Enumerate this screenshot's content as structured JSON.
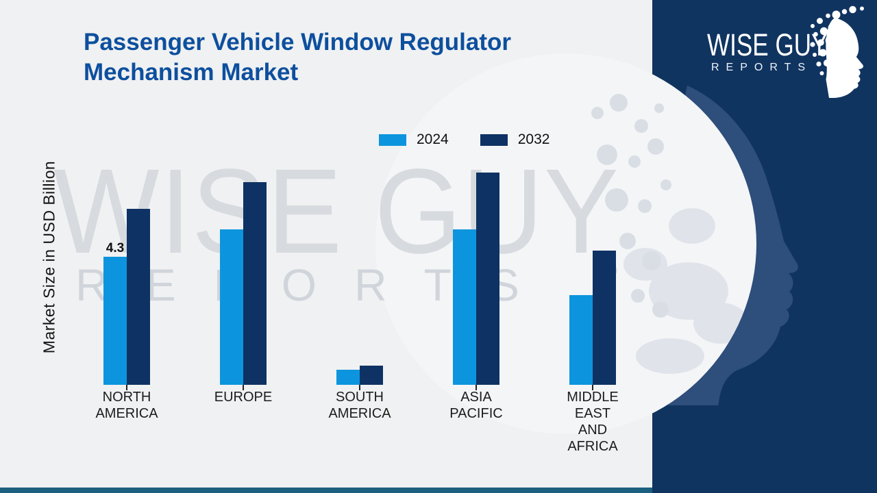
{
  "title": "Passenger Vehicle Window Regulator Mechanism Market",
  "y_axis_label": "Market Size in USD Billion",
  "watermark": {
    "line1": "WISE GUY",
    "line2": "REPORTS"
  },
  "logo": {
    "name": "WISE GUY",
    "sub": "REPORTS"
  },
  "legend": {
    "items": [
      {
        "label": "2024"
      },
      {
        "label": "2032"
      }
    ]
  },
  "colors": {
    "series_2024": "#0c95de",
    "series_2032": "#0e3263",
    "title_blue": "#0d4f9e",
    "corner_navy": "#103460",
    "face_blue": "#2e4e7b",
    "footer_teal": "#1c6080",
    "background": "#f0f1f2"
  },
  "chart_data": {
    "type": "bar",
    "title": "Passenger Vehicle Window Regulator Mechanism Market",
    "ylabel": "Market Size in USD Billion",
    "xlabel": "",
    "categories": [
      "NORTH AMERICA",
      "EUROPE",
      "SOUTH AMERICA",
      "ASIA PACIFIC",
      "MIDDLE EAST AND AFRICA"
    ],
    "category_lines": [
      [
        "NORTH",
        "AMERICA"
      ],
      [
        "EUROPE"
      ],
      [
        "SOUTH",
        "AMERICA"
      ],
      [
        "ASIA",
        "PACIFIC"
      ],
      [
        "MIDDLE",
        "EAST",
        "AND",
        "AFRICA"
      ]
    ],
    "series": [
      {
        "name": "2024",
        "color": "#0c95de",
        "values": [
          4.3,
          5.2,
          0.5,
          5.2,
          3.0
        ]
      },
      {
        "name": "2032",
        "color": "#0e3263",
        "values": [
          5.9,
          6.8,
          0.65,
          7.1,
          4.5
        ]
      }
    ],
    "bar_labels": [
      {
        "series_index": 0,
        "category_index": 0,
        "text": "4.3"
      }
    ],
    "ylim": [
      0,
      8
    ],
    "grid": false,
    "legend_position": "top-center",
    "y_axis_ticks_visible": false
  }
}
